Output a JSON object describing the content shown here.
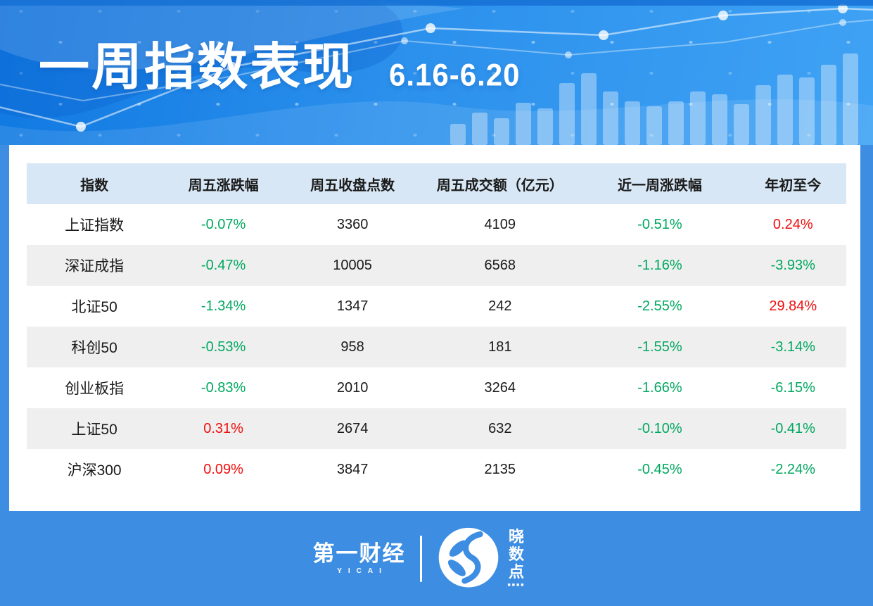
{
  "banner": {
    "title": "一周指数表现",
    "date_range": "6.16-6.20"
  },
  "table": {
    "columns": [
      "指数",
      "周五涨跌幅",
      "周五收盘点数",
      "周五成交额（亿元）",
      "近一周涨跌幅",
      "年初至今"
    ],
    "rows": [
      {
        "cells": [
          "上证指数",
          "-0.07%",
          "3360",
          "4109",
          "-0.51%",
          "0.24%"
        ]
      },
      {
        "cells": [
          "深证成指",
          "-0.47%",
          "10005",
          "6568",
          "-1.16%",
          "-3.93%"
        ]
      },
      {
        "cells": [
          "北证50",
          "-1.34%",
          "1347",
          "242",
          "-2.55%",
          "29.84%"
        ]
      },
      {
        "cells": [
          "科创50",
          "-0.53%",
          "958",
          "181",
          "-1.55%",
          "-3.14%"
        ]
      },
      {
        "cells": [
          "创业板指",
          "-0.83%",
          "2010",
          "3264",
          "-1.66%",
          "-6.15%"
        ]
      },
      {
        "cells": [
          "上证50",
          "0.31%",
          "2674",
          "632",
          "-0.10%",
          "-0.41%"
        ]
      },
      {
        "cells": [
          "沪深300",
          "0.09%",
          "3847",
          "2135",
          "-0.45%",
          "-2.24%"
        ]
      }
    ]
  },
  "colors": {
    "up_red": "#f20d0d",
    "down_green": "#00a85f",
    "frame_blue": "#3d8ee2",
    "header_row_bg": "#d8e7f5",
    "alt_row_bg": "#efefef"
  },
  "footer": {
    "brand_name": "第一财经",
    "brand_latin": "YICAI",
    "logo_chars": [
      "晓",
      "数",
      "点"
    ],
    "logo_dots": "■■■■"
  },
  "chart_data": {
    "type": "table",
    "title": "一周指数表现",
    "subtitle": "6.16-6.20",
    "columns": [
      "指数",
      "周五涨跌幅",
      "周五收盘点数",
      "周五成交额（亿元）",
      "近一周涨跌幅",
      "年初至今"
    ],
    "rows": [
      [
        "上证指数",
        "-0.07%",
        3360,
        4109,
        "-0.51%",
        "0.24%"
      ],
      [
        "深证成指",
        "-0.47%",
        10005,
        6568,
        "-1.16%",
        "-3.93%"
      ],
      [
        "北证50",
        "-1.34%",
        1347,
        242,
        "-2.55%",
        "29.84%"
      ],
      [
        "科创50",
        "-0.53%",
        958,
        181,
        "-1.55%",
        "-3.14%"
      ],
      [
        "创业板指",
        "-0.83%",
        2010,
        3264,
        "-1.66%",
        "-6.15%"
      ],
      [
        "上证50",
        "0.31%",
        2674,
        632,
        "-0.10%",
        "-0.41%"
      ],
      [
        "沪深300",
        "0.09%",
        3847,
        2135,
        "-0.45%",
        "-2.24%"
      ]
    ],
    "value_color_rule": "percent values starting with '-' are green (decline), others red (gain)"
  }
}
